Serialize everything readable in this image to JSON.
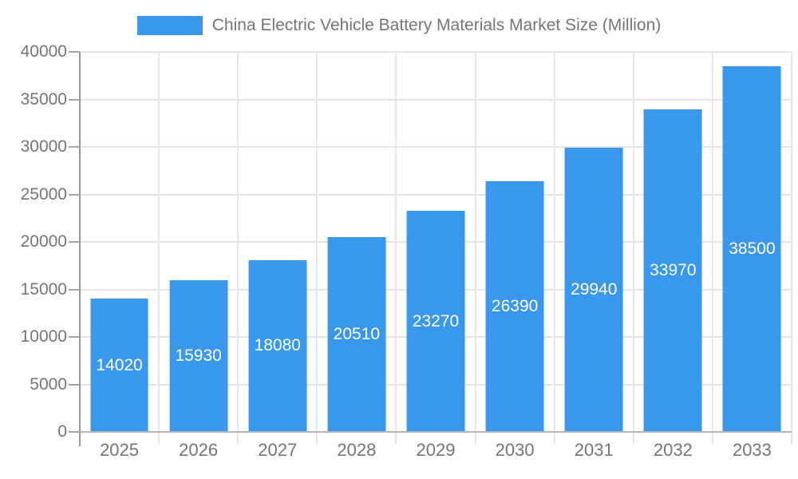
{
  "legend": {
    "title": "China Electric Vehicle Battery Materials Market Size (Million)"
  },
  "chart_data": {
    "type": "bar",
    "title": "China Electric Vehicle Battery Materials Market Size (Million)",
    "categories": [
      "2025",
      "2026",
      "2027",
      "2028",
      "2029",
      "2030",
      "2031",
      "2032",
      "2033"
    ],
    "values": [
      14020,
      15930,
      18080,
      20510,
      23270,
      26390,
      29940,
      33970,
      38500
    ],
    "xlabel": "",
    "ylabel": "",
    "ylim": [
      0,
      40000
    ],
    "yticks": [
      0,
      5000,
      10000,
      15000,
      20000,
      25000,
      30000,
      35000,
      40000
    ],
    "grid": true,
    "legend_position": "top-center",
    "bar_label_position": "inside-center",
    "colors": {
      "bar": "#3A98EC",
      "bar_label": "#ffffff",
      "grid": "#e4e4e4",
      "axis_y": "#999999",
      "axis_x": "#b5b5b5",
      "text": "#757575"
    }
  }
}
